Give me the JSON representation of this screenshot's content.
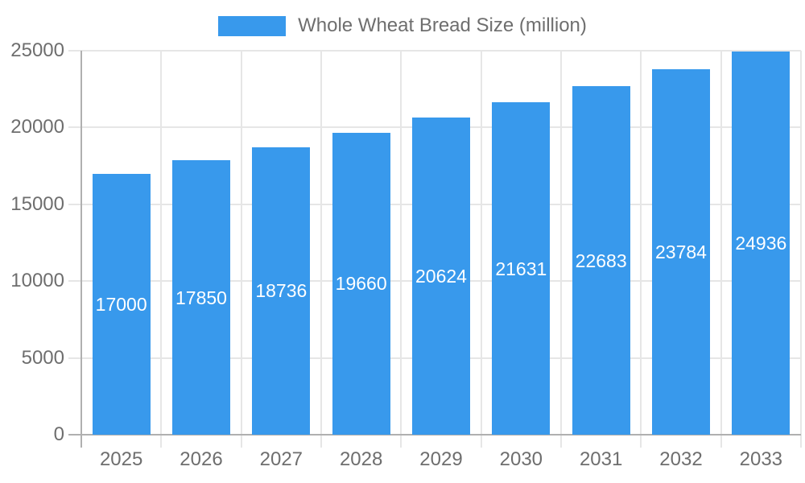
{
  "chart_data": {
    "type": "bar",
    "legend": "Whole Wheat Bread Size (million)",
    "legend_position": "top",
    "categories": [
      "2025",
      "2026",
      "2027",
      "2028",
      "2029",
      "2030",
      "2031",
      "2032",
      "2033"
    ],
    "values": [
      17000,
      17850,
      18736,
      19660,
      20624,
      21631,
      22683,
      23784,
      24936
    ],
    "value_labels": [
      "17000",
      "17850",
      "18736",
      "19660",
      "20624",
      "21631",
      "22683",
      "23784",
      "24936"
    ],
    "ylim": [
      0,
      25000
    ],
    "yticks": [
      0,
      5000,
      10000,
      15000,
      20000,
      25000
    ],
    "ytick_labels": [
      "0",
      "5000",
      "10000",
      "15000",
      "20000",
      "25000"
    ],
    "grid": true,
    "colors": {
      "bar": "#3899ec",
      "value_label": "#ffffff",
      "axis_text": "#6e6e6e",
      "gridline": "#e6e6e6",
      "axis_line": "#b0b0b0",
      "background": "#ffffff"
    }
  }
}
